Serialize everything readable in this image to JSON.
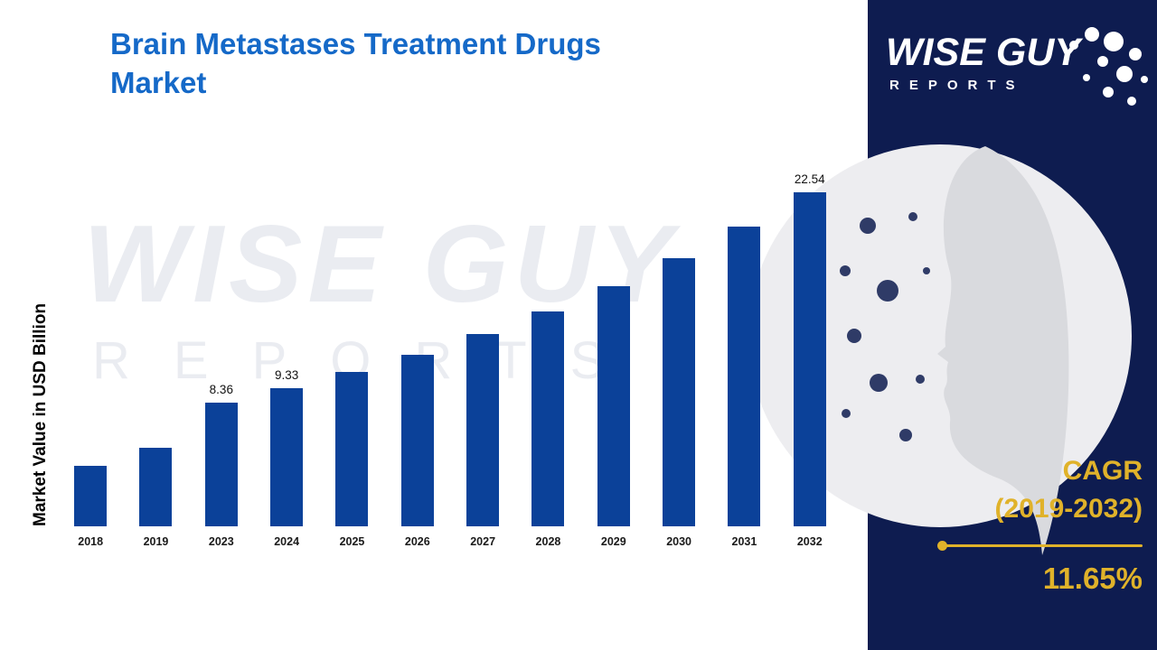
{
  "title": {
    "line1": "Brain Metastases Treatment Drugs",
    "line2": "Market"
  },
  "brand": {
    "line1": "WISE GUY",
    "line2": "REPORTS"
  },
  "watermark": {
    "line1": "WISE GUY",
    "line2": "REPORTS"
  },
  "cagr": {
    "label": "CAGR",
    "range": "(2019-2032)",
    "value": "11.65%"
  },
  "colors": {
    "title_blue": "#1569c8",
    "bar_blue": "#0b4199",
    "panel_navy": "#0e1c50",
    "accent_gold": "#e0b22a"
  },
  "chart_data": {
    "type": "bar",
    "title": "Brain Metastases Treatment Drugs Market",
    "xlabel": "",
    "ylabel": "Market Value in USD Billion",
    "categories": [
      "2018",
      "2019",
      "2023",
      "2024",
      "2025",
      "2026",
      "2027",
      "2028",
      "2029",
      "2030",
      "2031",
      "2032"
    ],
    "values": [
      4.1,
      5.3,
      8.36,
      9.33,
      10.4,
      11.6,
      13.0,
      14.5,
      16.2,
      18.1,
      20.2,
      22.54
    ],
    "data_labels": {
      "2023": "8.36",
      "2024": "9.33",
      "2032": "22.54"
    },
    "ylim": [
      0,
      24
    ],
    "grid": false,
    "legend": false,
    "bar_color": "#0b4199"
  }
}
